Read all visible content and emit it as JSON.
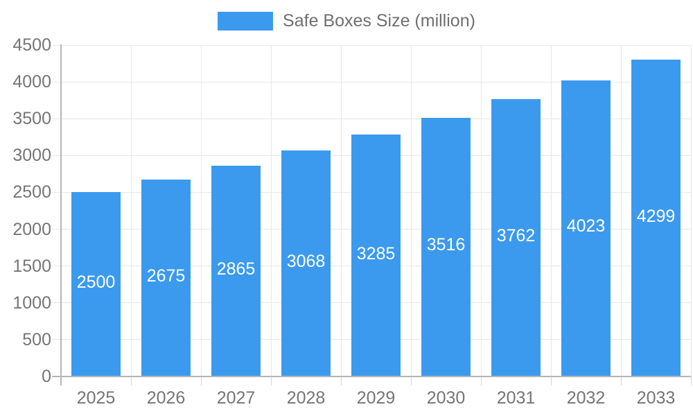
{
  "legend": {
    "label": "Safe Boxes Size (million)"
  },
  "chart_data": {
    "type": "bar",
    "title": "",
    "categories": [
      "2025",
      "2026",
      "2027",
      "2028",
      "2029",
      "2030",
      "2031",
      "2032",
      "2033"
    ],
    "series": [
      {
        "name": "Safe Boxes Size (million)",
        "values": [
          2500,
          2675,
          2865,
          3068,
          3285,
          3516,
          3762,
          4023,
          4299
        ]
      }
    ],
    "value_labels": [
      "2500",
      "2675",
      "2865",
      "3068",
      "3285",
      "3516",
      "3762",
      "4023",
      "4299"
    ],
    "ylabel": "",
    "xlabel": "",
    "ylim": [
      0,
      4500
    ],
    "ytick_step": 500,
    "ytick_labels": [
      "0",
      "500",
      "1000",
      "1500",
      "2000",
      "2500",
      "3000",
      "3500",
      "4000",
      "4500"
    ],
    "grid": true,
    "legend_position": "top",
    "colors": {
      "bar": "#3B9AEE",
      "bar_value_text": "#ffffff",
      "axis_line": "#b5b5b5",
      "gridline": "#e7e7e7",
      "tick": "#d4d4d4",
      "axis_text": "#757575",
      "legend_text": "#6f6f6f",
      "background": "#ffffff"
    }
  }
}
